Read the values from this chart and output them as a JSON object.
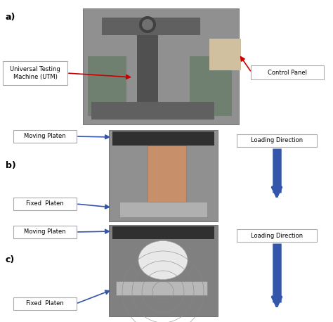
{
  "fig_width": 4.74,
  "fig_height": 4.58,
  "dpi": 100,
  "bg_color": "#ffffff",
  "label_a": "a)",
  "label_b": "b)",
  "label_c": "c)",
  "utm_label": "Universal Testing\nMachine (UTM)",
  "control_panel_label": "Control Panel",
  "moving_platen_b": "Moving Platen",
  "fixed_platen_b": "Fixed  Platen",
  "moving_platen_c": "Moving Platen",
  "fixed_platen_c": "Fixed  Platen",
  "loading_dir_b": "Loading Direction",
  "loading_dir_c": "Loading Direction",
  "arrow_color": "#3355aa",
  "red_arrow_color": "#cc0000",
  "box_edge_color": "#aaaaaa",
  "text_color": "#000000"
}
